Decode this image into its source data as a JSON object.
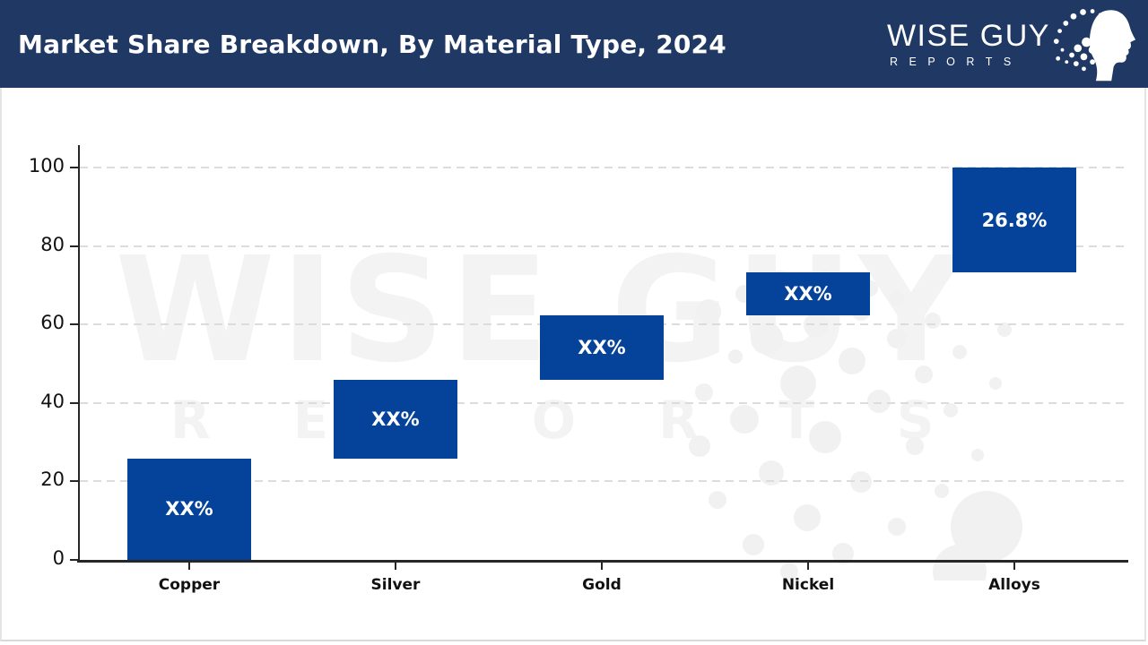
{
  "header": {
    "title": "Market Share Breakdown, By Material Type, 2024",
    "logo": {
      "line1": "WISE GUY",
      "line2": "REPORTS"
    }
  },
  "watermark": {
    "line1": "WISE GUY",
    "line2": "REPORTS"
  },
  "chart_data": {
    "type": "bar",
    "subtype": "waterfall-floating-bars",
    "title": "Market Share Breakdown, By Material Type, 2024",
    "categories": [
      "Copper",
      "Silver",
      "Gold",
      "Nickel",
      "Alloys"
    ],
    "segments": [
      {
        "category": "Copper",
        "label": "XX%",
        "start": 0,
        "end": 25.9
      },
      {
        "category": "Silver",
        "label": "XX%",
        "start": 25.9,
        "end": 46.0
      },
      {
        "category": "Gold",
        "label": "XX%",
        "start": 46.0,
        "end": 62.3
      },
      {
        "category": "Nickel",
        "label": "XX%",
        "start": 62.3,
        "end": 73.2
      },
      {
        "category": "Alloys",
        "label": "26.8%",
        "start": 73.2,
        "end": 100.0
      }
    ],
    "yticks": [
      0,
      20,
      40,
      60,
      80,
      100
    ],
    "ylim": [
      0,
      105
    ],
    "xlabel": "",
    "ylabel": "",
    "grid": "horizontal-dashed",
    "legend": "none",
    "bar_color": "#05429a",
    "label_color": "#ffffff"
  },
  "colors": {
    "header_bg": "#1f3864",
    "axis": "#262626",
    "grid": "#dcdcdc",
    "watermark": "#f3f3f3"
  }
}
